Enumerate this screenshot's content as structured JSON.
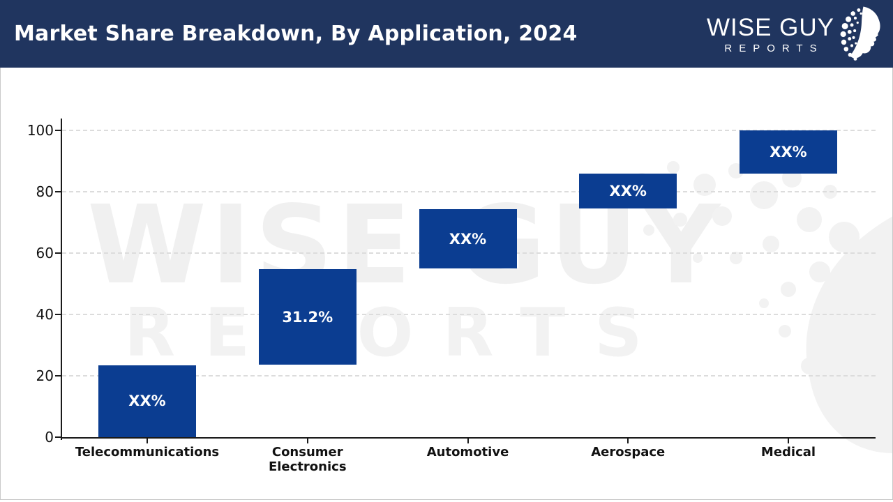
{
  "header": {
    "title": "Market Share Breakdown, By Application, 2024",
    "bg_color": "#20355f",
    "logo": {
      "wordmark": "WISE GUY",
      "tagline": "REPORTS"
    }
  },
  "watermark": {
    "line1": "WISE GUY",
    "line2": "REPORTS"
  },
  "chart_data": {
    "type": "bar",
    "variant": "waterfall",
    "title": "Market Share Breakdown, By Application, 2024",
    "xlabel": "",
    "ylabel": "",
    "ylim": [
      0,
      104
    ],
    "yticks": [
      0,
      20,
      40,
      60,
      80,
      100
    ],
    "grid": "horizontal-dashed",
    "legend": "none",
    "bar_color": "#0b3d91",
    "label_color": "#ffffff",
    "bars": [
      {
        "category": "Telecommunications",
        "start": 0,
        "end": 23.5,
        "label": "XX%"
      },
      {
        "category": "Consumer\nElectronics",
        "start": 23.5,
        "end": 54.7,
        "label": "31.2%",
        "value": 31.2
      },
      {
        "category": "Automotive",
        "start": 54.9,
        "end": 74.2,
        "label": "XX%"
      },
      {
        "category": "Aerospace",
        "start": 74.5,
        "end": 85.8,
        "label": "XX%"
      },
      {
        "category": "Medical",
        "start": 85.9,
        "end": 100,
        "label": "XX%"
      }
    ]
  }
}
